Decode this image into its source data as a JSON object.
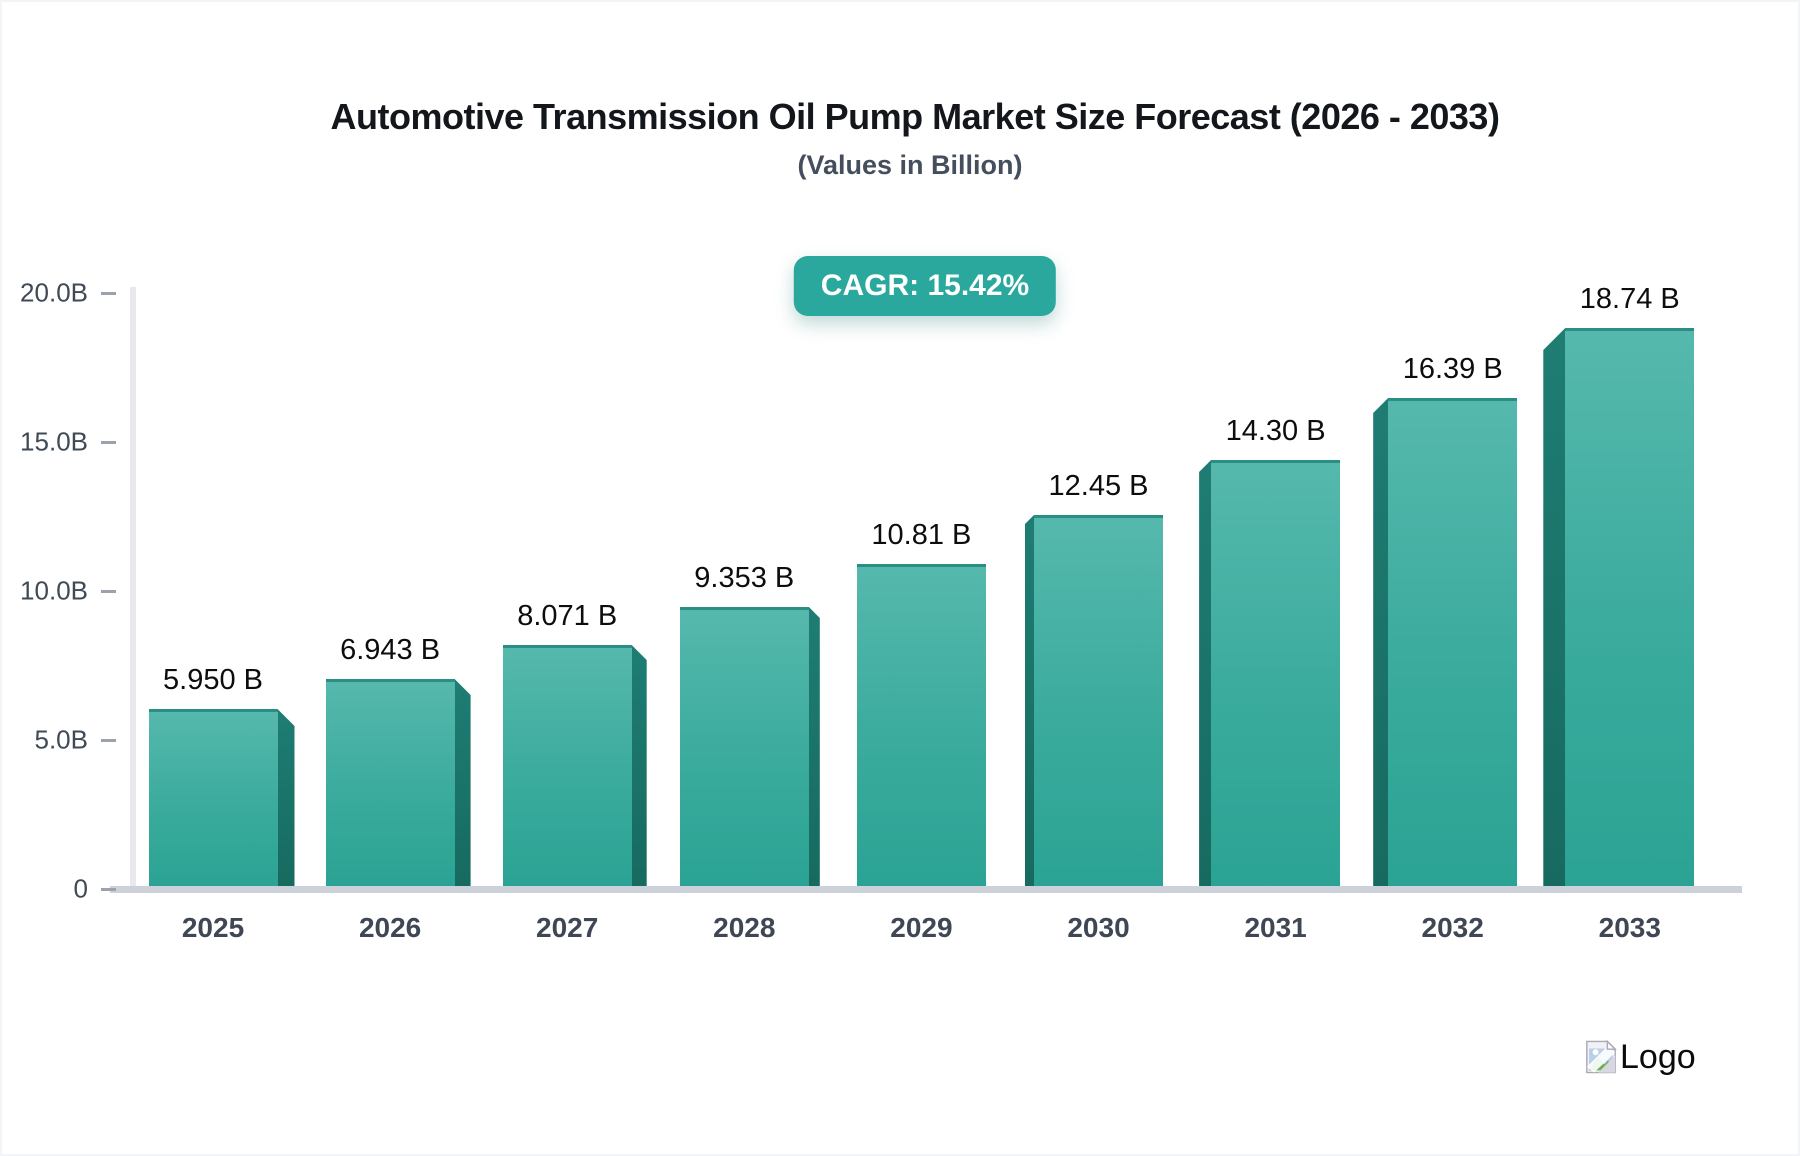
{
  "header": {
    "title": "Automotive Transmission Oil Pump Market Size Forecast (2026 - 2033)",
    "subtitle": "(Values in Billion)",
    "cagr_badge": "CAGR: 15.42%"
  },
  "logo": {
    "alt_text": "Logo",
    "icon": "broken-image-icon"
  },
  "colors": {
    "bar_face_top": "#56b8ad",
    "bar_face_bottom": "#2ba394",
    "bar_side": "#1e7d73",
    "badge_background": "#2aa89d",
    "badge_text": "#ffffff",
    "axis_line": "#e7e9ee",
    "baseline": "#cdd1da",
    "tick_label": "#3f4a57",
    "value_label": "#0c0d0e",
    "title": "#13161b",
    "subtitle": "#454e5c"
  },
  "chart_data": {
    "type": "bar",
    "title": "Automotive Transmission Oil Pump Market Size Forecast (2026 - 2033)",
    "subtitle": "(Values in Billion)",
    "annotation": "CAGR: 15.42%",
    "categories": [
      "2025",
      "2026",
      "2027",
      "2028",
      "2029",
      "2030",
      "2031",
      "2032",
      "2033"
    ],
    "values": [
      5.95,
      6.943,
      8.071,
      9.353,
      10.81,
      12.45,
      14.3,
      16.39,
      18.74
    ],
    "value_labels": [
      "5.950 B",
      "6.943 B",
      "8.071 B",
      "9.353 B",
      "10.81 B",
      "12.45 B",
      "14.30 B",
      "16.39 B",
      "18.74 B"
    ],
    "xlabel": "",
    "ylabel": "",
    "ylim": [
      0,
      20
    ],
    "yticks": [
      0,
      5,
      10,
      15,
      20
    ],
    "ytick_labels": [
      "0",
      "5.0B",
      "10.0B",
      "15.0B",
      "20.0B"
    ],
    "grid": false,
    "legend": false,
    "style": "3d-extruded-bars-center-vanishing-point",
    "unit": "Billion"
  }
}
